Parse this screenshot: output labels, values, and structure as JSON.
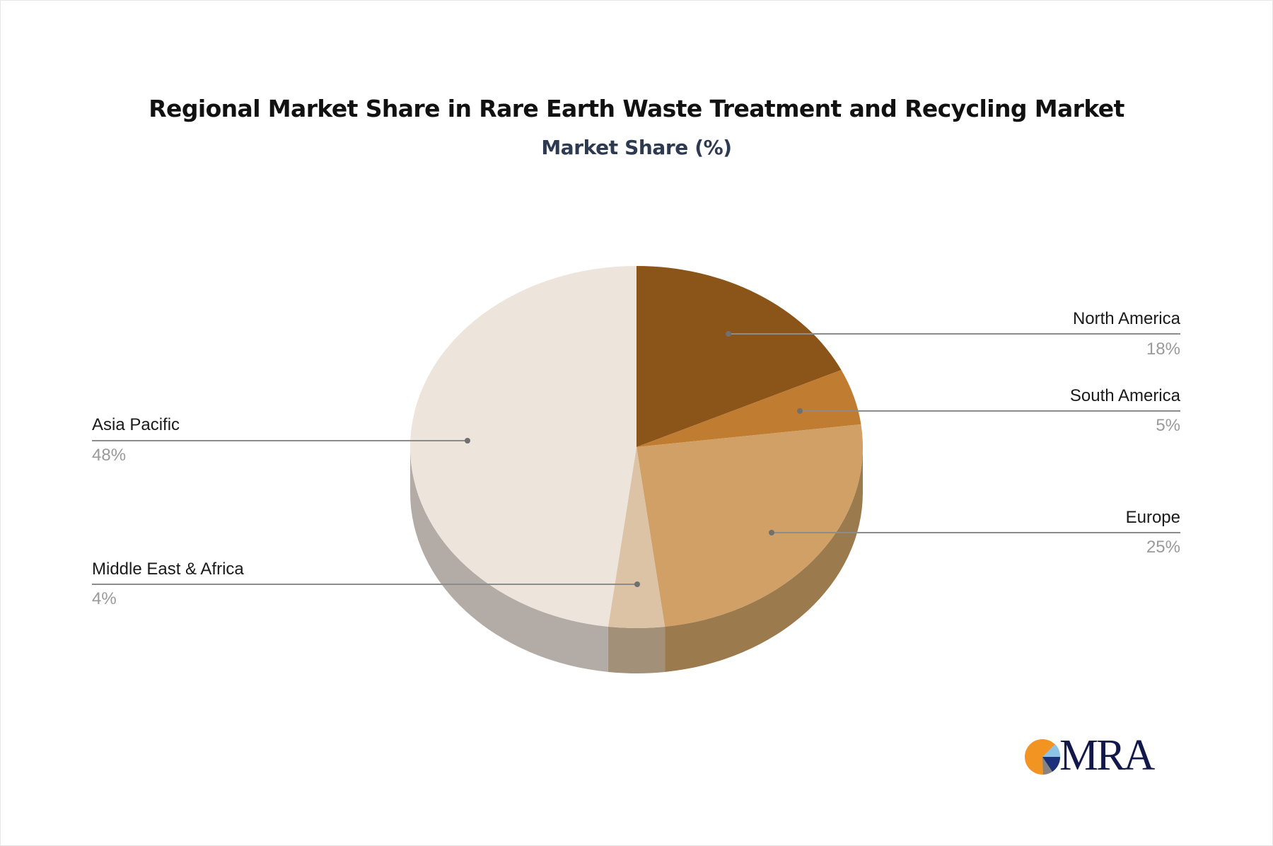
{
  "header": {
    "title": "Regional Market Share in Rare Earth Waste Treatment and Recycling Market",
    "subtitle": "Market Share (%)"
  },
  "labels": {
    "north_america": {
      "name": "North America",
      "value": "18%"
    },
    "south_america": {
      "name": "South America",
      "value": "5%"
    },
    "europe": {
      "name": "Europe",
      "value": "25%"
    },
    "middle_east_africa": {
      "name": "Middle East & Africa",
      "value": "4%"
    },
    "asia_pacific": {
      "name": "Asia Pacific",
      "value": "48%"
    }
  },
  "logo": {
    "text": "MRA",
    "icon": "pie-chart-logo-icon"
  },
  "colors": {
    "north_america": "#8b5519",
    "south_america": "#c07c30",
    "europe": "#d1a066",
    "middle_east_africa": "#dcc3a5",
    "asia_pacific": "#ede4db",
    "leader_line": "#8c8c8c",
    "logo_navy": "#12194a",
    "logo_orange": "#f29422"
  },
  "chart_data": {
    "type": "pie",
    "title": "Regional Market Share in Rare Earth Waste Treatment and Recycling Market",
    "subtitle": "Market Share (%)",
    "style": "3d-pie",
    "start_angle": "12 o'clock, clockwise",
    "categories": [
      "North America",
      "South America",
      "Europe",
      "Middle East & Africa",
      "Asia Pacific"
    ],
    "values": [
      18,
      5,
      25,
      4,
      48
    ],
    "unit": "%",
    "colors": [
      "#8b5519",
      "#c07c30",
      "#d1a066",
      "#dcc3a5",
      "#ede4db"
    ],
    "legend": "none (leader-line labels)"
  }
}
